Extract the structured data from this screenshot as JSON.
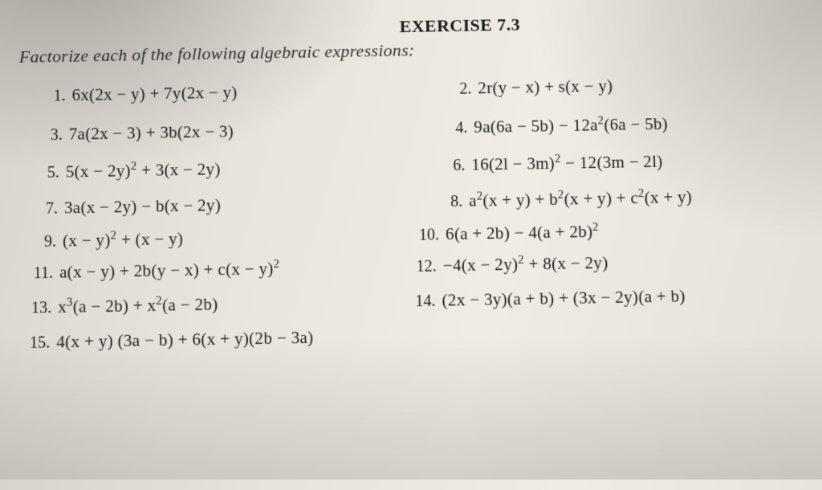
{
  "title": "EXERCISE 7.3",
  "instruction_prefix": "Factorize",
  "instruction_rest": " each of the following algebraic expressions:",
  "problems": {
    "p1": {
      "n": "1.",
      "expr": "6x(2x − y) + 7y(2x − y)"
    },
    "p2": {
      "n": "2.",
      "expr": "2r(y − x) + s(x − y)"
    },
    "p3": {
      "n": "3.",
      "expr": "7a(2x − 3) + 3b(2x − 3)"
    },
    "p4": {
      "n": "4.",
      "expr_html": "9a(6a − 5b) − 12a<sup>2</sup>(6a − 5b)"
    },
    "p5": {
      "n": "5.",
      "expr_html": "5(x − 2y)<sup>2</sup> + 3(x − 2y)"
    },
    "p6": {
      "n": "6.",
      "expr_html": "16(2l − 3m)<sup>2</sup> − 12(3m − 2l)"
    },
    "p7": {
      "n": "7.",
      "expr": "3a(x − 2y) − b(x − 2y)"
    },
    "p8": {
      "n": "8.",
      "expr_html": "a<sup>2</sup>(x + y) + b<sup>2</sup>(x + y) + c<sup>2</sup>(x + y)"
    },
    "p9": {
      "n": "9.",
      "expr_html": "(x − y)<sup>2</sup> + (x − y)"
    },
    "p10": {
      "n": "10.",
      "expr_html": "6(a + 2b) − 4(a + 2b)<sup>2</sup>"
    },
    "p11": {
      "n": "11.",
      "expr_html": "a(x − y) + 2b(y − x) + c(x − y)<sup>2</sup>"
    },
    "p12": {
      "n": "12.",
      "expr_html": "−4(x − 2y)<sup>2</sup> + 8(x − 2y)"
    },
    "p13": {
      "n": "13.",
      "expr_html": "x<sup>3</sup>(a − 2b) + x<sup>2</sup>(a − 2b)"
    },
    "p14": {
      "n": "14.",
      "expr": "(2x − 3y)(a + b) + (3x − 2y)(a + b)"
    },
    "p15": {
      "n": "15.",
      "expr": "4(x + y) (3a − b) + 6(x + y)(2b − 3a)"
    }
  }
}
